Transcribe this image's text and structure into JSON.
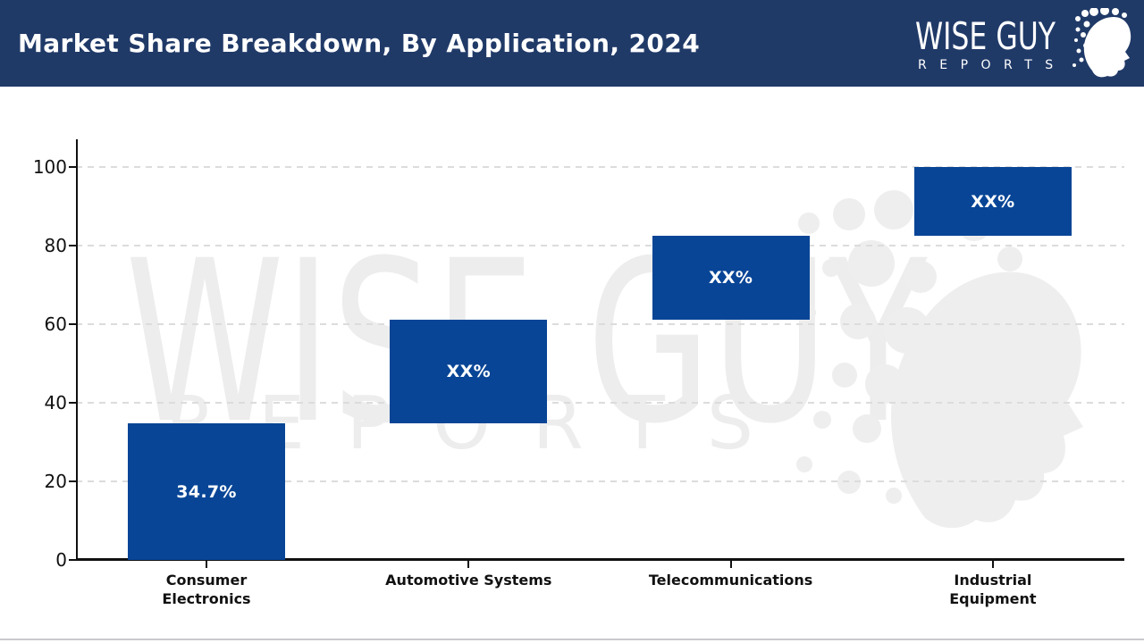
{
  "header": {
    "title": "Market Share Breakdown, By Application, 2024",
    "logo": {
      "line1": "WISE GUY",
      "line2": "REPORTS"
    }
  },
  "watermark": {
    "line1": "WISE GUY",
    "line2": "REPORTS"
  },
  "chart_data": {
    "type": "bar",
    "subtype": "waterfall",
    "title": "Market Share Breakdown, By Application, 2024",
    "categories": [
      "Consumer Electronics",
      "Automotive Systems",
      "Telecommunications",
      "Industrial Equipment"
    ],
    "category_label_lines": [
      [
        "Consumer",
        "Electronics"
      ],
      [
        "Automotive Systems"
      ],
      [
        "Telecommunications"
      ],
      [
        "Industrial",
        "Equipment"
      ]
    ],
    "segments": [
      {
        "category": "Consumer Electronics",
        "start": 0,
        "end": 34.7,
        "label": "34.7%"
      },
      {
        "category": "Automotive Systems",
        "start": 34.7,
        "end": 61.1,
        "label": "XX%"
      },
      {
        "category": "Telecommunications",
        "start": 61.1,
        "end": 82.5,
        "label": "XX%"
      },
      {
        "category": "Industrial Equipment",
        "start": 82.5,
        "end": 100,
        "label": "XX%"
      }
    ],
    "y_ticks": [
      0,
      20,
      40,
      60,
      80,
      100
    ],
    "ylim": [
      0,
      107
    ],
    "grid": "horizontal-dashed",
    "legend": "none",
    "xlabel": "",
    "ylabel": ""
  },
  "colors": {
    "header_bg": "#203a68",
    "bar": "#084596",
    "bar_label": "#ffffff",
    "grid": "#dcdcdc",
    "axis": "#111111",
    "watermark": "#ededed"
  }
}
